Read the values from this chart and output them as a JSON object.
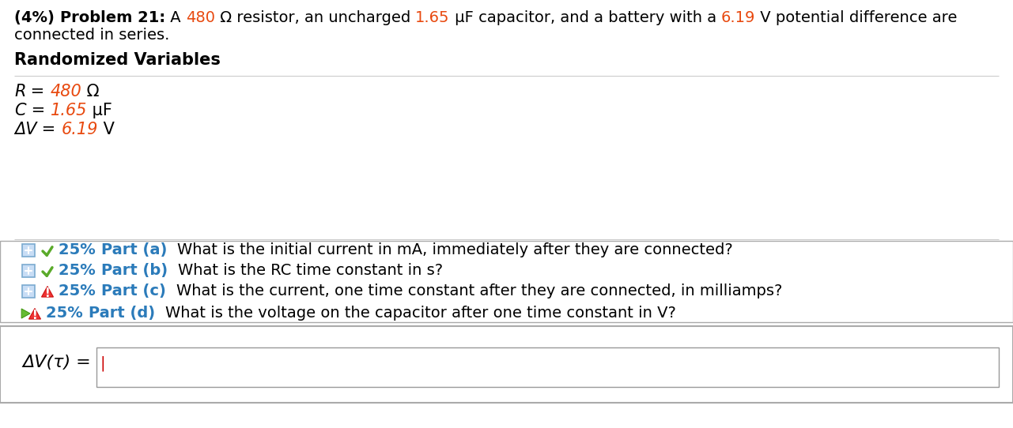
{
  "bg_color": "#ffffff",
  "title_line1_parts": [
    {
      "text": "(4%) ",
      "bold": true,
      "color": "#000000"
    },
    {
      "text": "Problem 21:",
      "bold": true,
      "color": "#000000"
    },
    {
      "text": " A ",
      "bold": false,
      "color": "#000000"
    },
    {
      "text": "480",
      "bold": false,
      "color": "#e8490f"
    },
    {
      "text": " Ω resistor, an uncharged ",
      "bold": false,
      "color": "#000000"
    },
    {
      "text": "1.65",
      "bold": false,
      "color": "#e8490f"
    },
    {
      "text": " μF capacitor, and a battery with a ",
      "bold": false,
      "color": "#000000"
    },
    {
      "text": "6.19",
      "bold": false,
      "color": "#e8490f"
    },
    {
      "text": " V potential difference are",
      "bold": false,
      "color": "#000000"
    }
  ],
  "title_line2": "connected in series.",
  "randomized_label": "Randomized Variables",
  "var_R_parts": [
    {
      "text": "R",
      "italic": true,
      "bold": false,
      "color": "#000000"
    },
    {
      "text": " = ",
      "italic": false,
      "bold": false,
      "color": "#000000"
    },
    {
      "text": "480",
      "italic": true,
      "bold": false,
      "color": "#e8490f"
    },
    {
      "text": " Ω",
      "italic": false,
      "bold": false,
      "color": "#000000"
    }
  ],
  "var_C_parts": [
    {
      "text": "C",
      "italic": true,
      "bold": false,
      "color": "#000000"
    },
    {
      "text": " = ",
      "italic": false,
      "bold": false,
      "color": "#000000"
    },
    {
      "text": "1.65",
      "italic": true,
      "bold": false,
      "color": "#e8490f"
    },
    {
      "text": " μF",
      "italic": false,
      "bold": false,
      "color": "#000000"
    }
  ],
  "var_V_parts": [
    {
      "text": "ΔV",
      "italic": true,
      "bold": false,
      "color": "#000000"
    },
    {
      "text": " = ",
      "italic": false,
      "bold": false,
      "color": "#000000"
    },
    {
      "text": "6.19",
      "italic": true,
      "bold": false,
      "color": "#e8490f"
    },
    {
      "text": " V",
      "italic": false,
      "bold": false,
      "color": "#000000"
    }
  ],
  "parts": [
    {
      "has_blue_box": true,
      "icon_check": true,
      "icon_warning": false,
      "active": false,
      "pct": "25%",
      "part_label": "Part (a)",
      "question": "What is the initial current in mA, immediately after they are connected?"
    },
    {
      "has_blue_box": true,
      "icon_check": true,
      "icon_warning": false,
      "active": false,
      "pct": "25%",
      "part_label": "Part (b)",
      "question": "What is the RC time constant in s?"
    },
    {
      "has_blue_box": true,
      "icon_check": false,
      "icon_warning": true,
      "active": false,
      "pct": "25%",
      "part_label": "Part (c)",
      "question": "What is the current, one time constant after they are connected, in milliamps?"
    },
    {
      "has_blue_box": false,
      "icon_check": false,
      "icon_warning": true,
      "active": true,
      "pct": "25%",
      "part_label": "Part (d)",
      "question": "What is the voltage on the capacitor after one time constant in V?"
    }
  ],
  "answer_label_parts": [
    {
      "text": "ΔV(τ)",
      "italic": true,
      "bold": false,
      "color": "#000000"
    },
    {
      "text": " = ",
      "italic": false,
      "bold": false,
      "color": "#000000"
    }
  ],
  "orange_color": "#e8490f",
  "blue_color": "#2b7bba",
  "green_color": "#5aaa2a",
  "red_warn_color": "#dd2222",
  "separator_color": "#cccccc",
  "box_border_color": "#aaaaaa",
  "blue_box_face": "#c8ddf5",
  "blue_box_edge": "#7aaad0",
  "font_size": 14
}
